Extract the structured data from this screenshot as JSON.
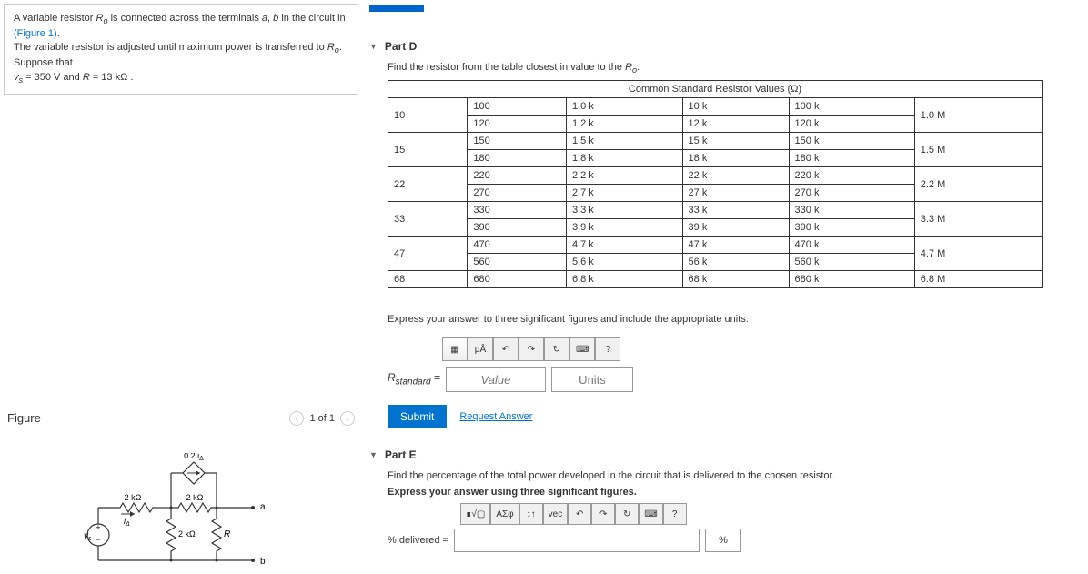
{
  "problem": {
    "line1_pre": "A variable resistor ",
    "line1_Ro": "R",
    "line1_o": "o",
    "line1_mid": " is connected across the terminals ",
    "line1_a": "a",
    "line1_comma": ", ",
    "line1_b": "b",
    "line1_post": " in the circuit in ",
    "line1_fig": "(Figure 1)",
    "line1_end": ".",
    "line2_pre": "The variable resistor is adjusted until maximum power is transferred to ",
    "line2_Ro": "R",
    "line2_o": "o",
    "line2_post": ". Suppose that",
    "line3_pre": "",
    "line3_vs": "v",
    "line3_s": "s",
    "line3_eq": " = 350  V and ",
    "line3_R": "R",
    "line3_Rval": " = 13  kΩ ."
  },
  "figure": {
    "title": "Figure",
    "nav_text": "1 of 1",
    "labels": {
      "dep_src": "0.2 i",
      "dep_delta": "Δ",
      "r1": "2 kΩ",
      "r2": "2 kΩ",
      "r3": "2 kΩ",
      "rR": "R",
      "vs": "v",
      "vs_sub": "s",
      "idelta": "i",
      "idelta_sub": "Δ",
      "node_a": "a",
      "node_b": "b",
      "plus": "+",
      "minus": "−"
    }
  },
  "partD": {
    "header": "Part D",
    "instruction_pre": "Find the resistor from the table closest in value to the ",
    "instruction_Ro": "R",
    "instruction_o": "o",
    "instruction_post": ".",
    "table_caption": "Common Standard Resistor Values (Ω)",
    "table": {
      "rows": [
        [
          "10",
          "100",
          "1.0 k",
          "10 k",
          "100 k",
          "1.0 M"
        ],
        [
          "",
          "120",
          "1.2 k",
          "12 k",
          "120 k",
          ""
        ],
        [
          "15",
          "150",
          "1.5 k",
          "15 k",
          "150 k",
          "1.5 M"
        ],
        [
          "",
          "180",
          "1.8 k",
          "18 k",
          "180 k",
          ""
        ],
        [
          "22",
          "220",
          "2.2 k",
          "22 k",
          "220 k",
          "2.2 M"
        ],
        [
          "",
          "270",
          "2.7 k",
          "27 k",
          "270 k",
          ""
        ],
        [
          "33",
          "330",
          "3.3 k",
          "33 k",
          "330 k",
          "3.3 M"
        ],
        [
          "",
          "390",
          "3.9 k",
          "39 k",
          "390 k",
          ""
        ],
        [
          "47",
          "470",
          "4.7 k",
          "47 k",
          "470 k",
          "4.7 M"
        ],
        [
          "",
          "560",
          "5.6 k",
          "56 k",
          "560 k",
          ""
        ],
        [
          "68",
          "680",
          "6.8 k",
          "68 k",
          "680 k",
          "6.8 M"
        ]
      ]
    },
    "answer_prompt": "Express your answer to three significant figures and include the appropriate units.",
    "answer_label_pre": "R",
    "answer_label_sub": "standard",
    "answer_label_eq": " = ",
    "value_placeholder": "Value",
    "units_placeholder": "Units",
    "submit": "Submit",
    "request": "Request Answer",
    "tb": {
      "templates": "▦",
      "muA": "μÅ",
      "undo": "↶",
      "redo": "↷",
      "reset": "↻",
      "keyboard": "⌨",
      "help": "?"
    }
  },
  "partE": {
    "header": "Part E",
    "line1": "Find the percentage of the total power developed in the circuit that is delivered to the chosen resistor.",
    "line2": "Express your answer using three significant figures.",
    "label": "% delivered =",
    "unit": "%",
    "tb": {
      "sqrt": "∎√▢",
      "greek": "ΑΣφ",
      "updown": "↕↑",
      "vec": "vec",
      "undo": "↶",
      "redo": "↷",
      "reset": "↻",
      "keyboard": "⌨",
      "help": "?"
    }
  }
}
